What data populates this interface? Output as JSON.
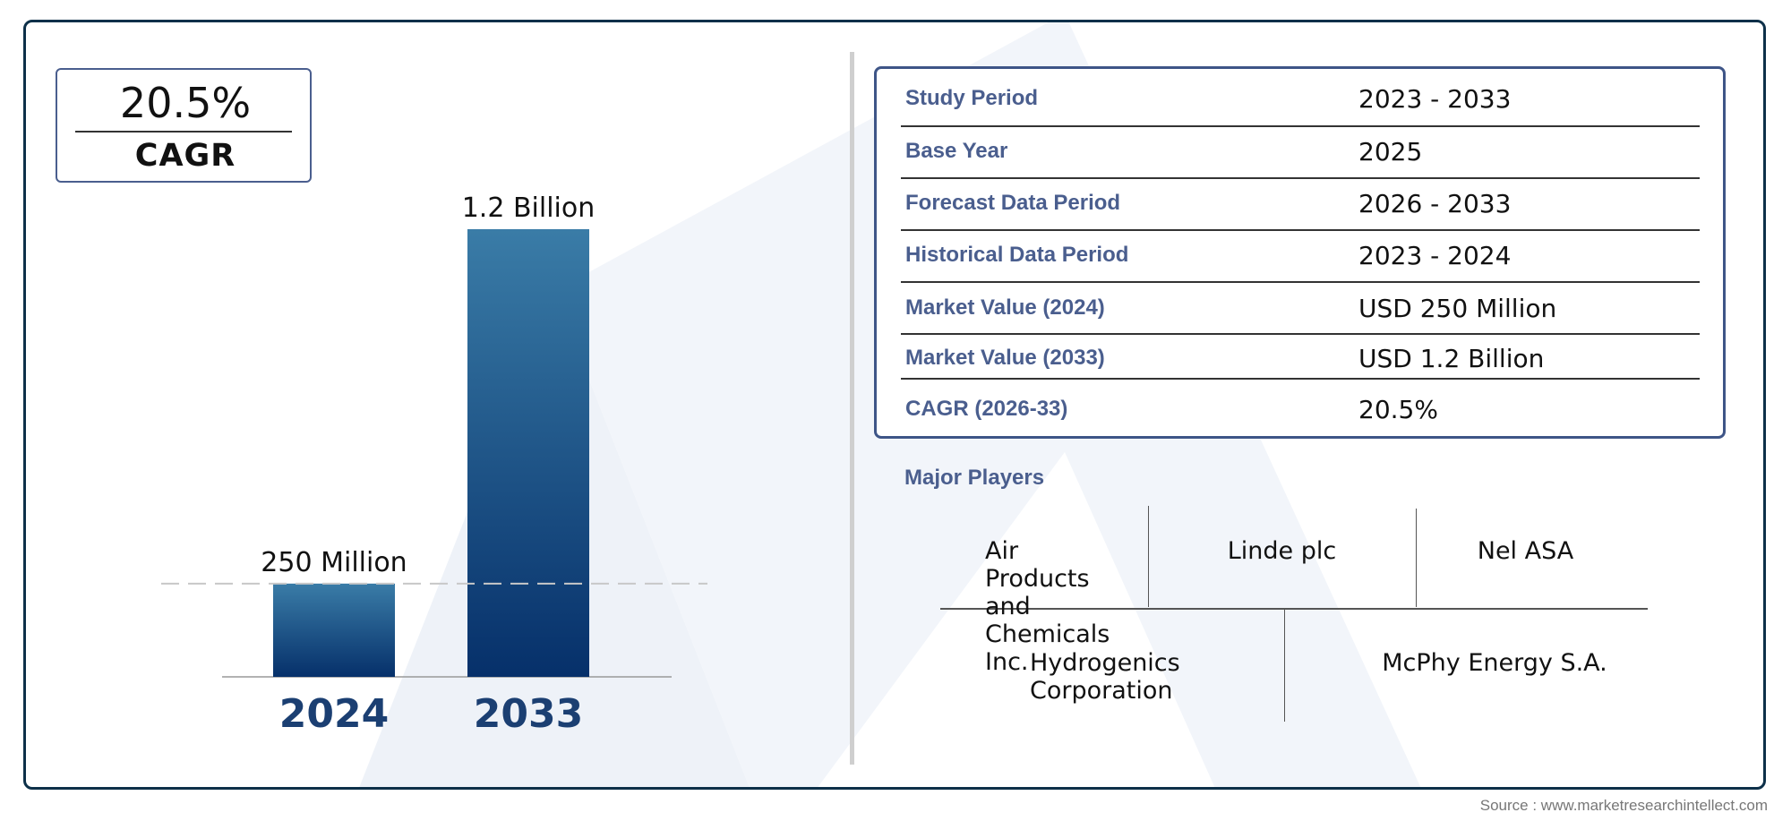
{
  "cagr": {
    "value": "20.5%",
    "label": "CAGR"
  },
  "chart_data": {
    "type": "bar",
    "categories": [
      "2024",
      "2033"
    ],
    "values": [
      250,
      1200
    ],
    "data_labels": [
      "250 Million",
      "1.2 Billion"
    ],
    "ylim": [
      0,
      1200
    ],
    "reference_line": 250,
    "colors": {
      "bar_top": "#3a7ca7",
      "bar_bottom": "#06306a",
      "year_text": "#1b3f72"
    }
  },
  "table": {
    "rows": [
      {
        "key": "Study Period",
        "value": "2023 - 2033"
      },
      {
        "key": "Base Year",
        "value": "2025"
      },
      {
        "key": "Forecast Data Period",
        "value": "2026 - 2033"
      },
      {
        "key": "Historical Data Period",
        "value": "2023 - 2024"
      },
      {
        "key": "Market Value (2024)",
        "value": "USD 250 Million"
      },
      {
        "key": "Market Value (2033)",
        "value": "USD 1.2 Billion"
      },
      {
        "key": "CAGR (2026-33)",
        "value": "20.5%"
      }
    ]
  },
  "players": {
    "title": "Major Players",
    "names": [
      "Air Products and Chemicals Inc.",
      "Linde plc",
      "Nel ASA",
      "Hydrogenics Corporation",
      "McPhy Energy S.A."
    ]
  },
  "source": "Source : www.marketresearchintellect.com",
  "colors": {
    "frame": "#0d3049",
    "accent": "#4a5e8e"
  }
}
